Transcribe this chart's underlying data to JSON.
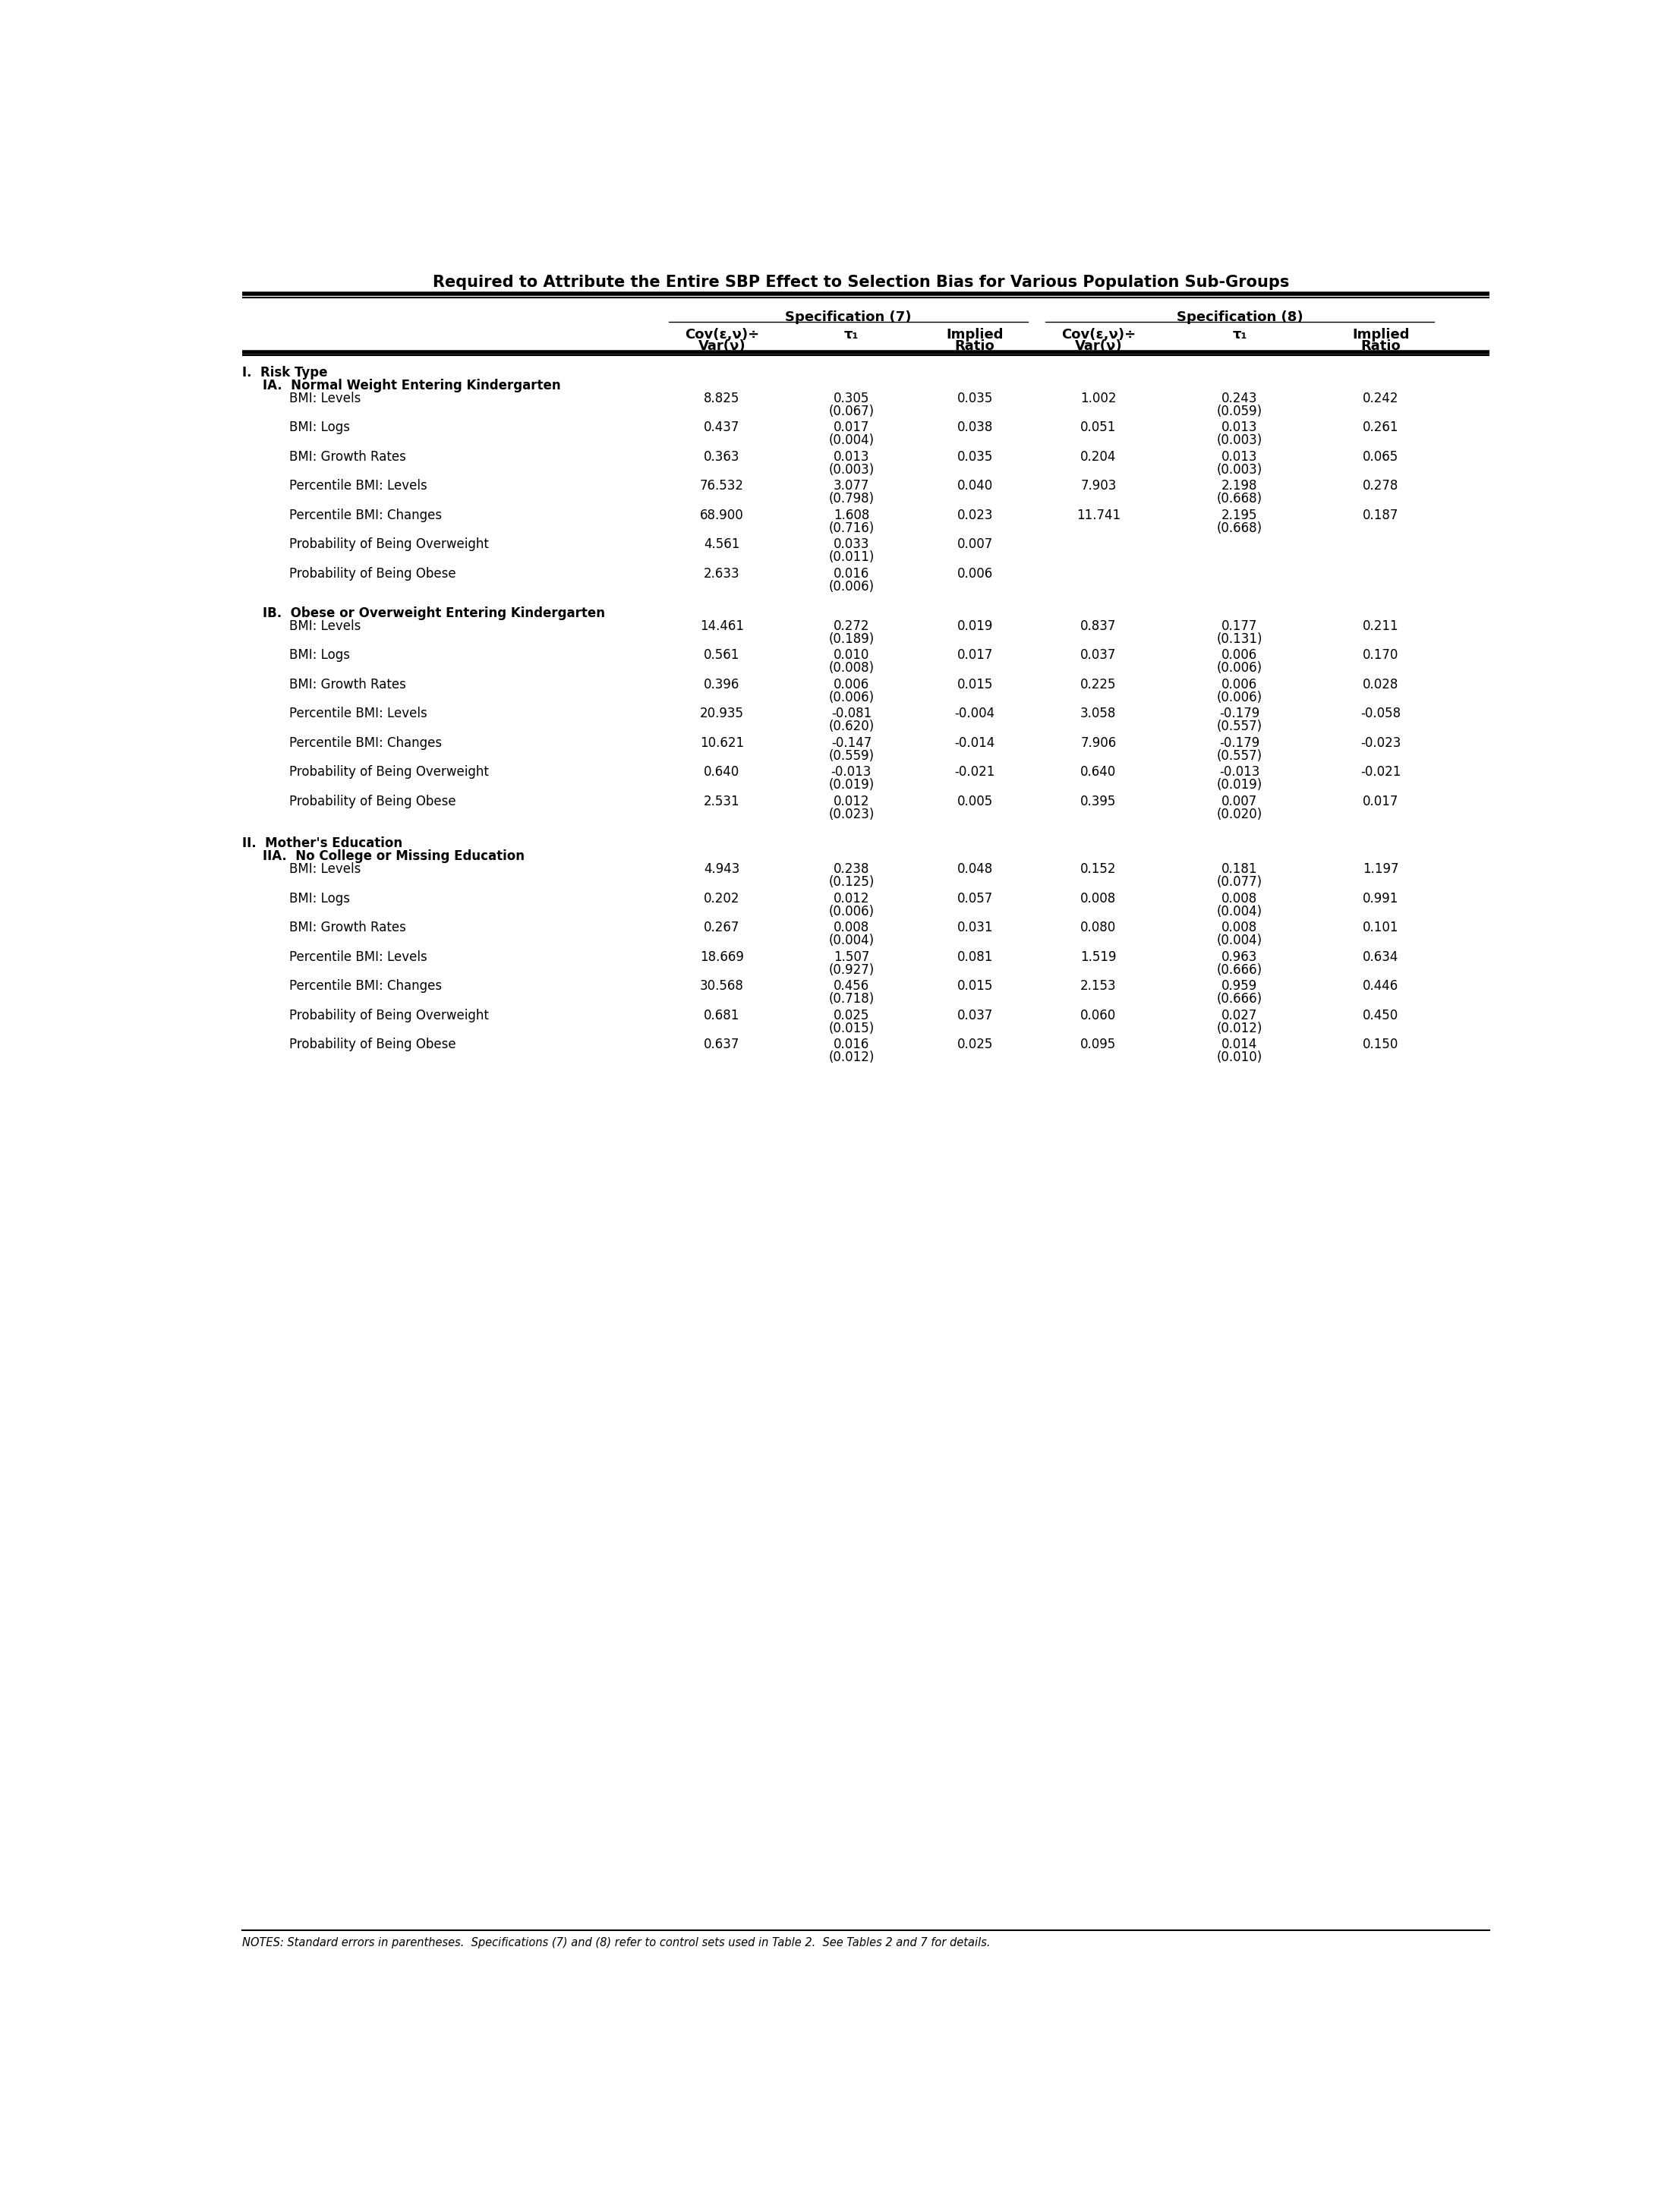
{
  "title_bold": "Required to Attribute the Entire SBP Effect to Selection Bias for Various Population Sub-Groups",
  "notes": "NOTES: Standard errors in parentheses.  Specifications (7) and (8) refer to control sets used in Table 2.  See Tables 2 and 7 for details.",
  "sections": [
    {
      "label": "I.  Risk Type",
      "subsections": [
        {
          "label": "IA.  Normal Weight Entering Kindergarten",
          "rows": [
            {
              "name": "BMI: Levels",
              "s7_cov": "8.825",
              "s7_tau": "0.305",
              "s7_se": "(0.067)",
              "s7_imp": "0.035",
              "s8_cov": "1.002",
              "s8_tau": "0.243",
              "s8_se": "(0.059)",
              "s8_imp": "0.242"
            },
            {
              "name": "BMI: Logs",
              "s7_cov": "0.437",
              "s7_tau": "0.017",
              "s7_se": "(0.004)",
              "s7_imp": "0.038",
              "s8_cov": "0.051",
              "s8_tau": "0.013",
              "s8_se": "(0.003)",
              "s8_imp": "0.261"
            },
            {
              "name": "BMI: Growth Rates",
              "s7_cov": "0.363",
              "s7_tau": "0.013",
              "s7_se": "(0.003)",
              "s7_imp": "0.035",
              "s8_cov": "0.204",
              "s8_tau": "0.013",
              "s8_se": "(0.003)",
              "s8_imp": "0.065"
            },
            {
              "name": "Percentile BMI: Levels",
              "s7_cov": "76.532",
              "s7_tau": "3.077",
              "s7_se": "(0.798)",
              "s7_imp": "0.040",
              "s8_cov": "7.903",
              "s8_tau": "2.198",
              "s8_se": "(0.668)",
              "s8_imp": "0.278"
            },
            {
              "name": "Percentile BMI: Changes",
              "s7_cov": "68.900",
              "s7_tau": "1.608",
              "s7_se": "(0.716)",
              "s7_imp": "0.023",
              "s8_cov": "11.741",
              "s8_tau": "2.195",
              "s8_se": "(0.668)",
              "s8_imp": "0.187"
            },
            {
              "name": "Probability of Being Overweight",
              "s7_cov": "4.561",
              "s7_tau": "0.033",
              "s7_se": "(0.011)",
              "s7_imp": "0.007",
              "s8_cov": "",
              "s8_tau": "",
              "s8_se": "",
              "s8_imp": ""
            },
            {
              "name": "Probability of Being Obese",
              "s7_cov": "2.633",
              "s7_tau": "0.016",
              "s7_se": "(0.006)",
              "s7_imp": "0.006",
              "s8_cov": "",
              "s8_tau": "",
              "s8_se": "",
              "s8_imp": ""
            }
          ]
        },
        {
          "label": "IB.  Obese or Overweight Entering Kindergarten",
          "rows": [
            {
              "name": "BMI: Levels",
              "s7_cov": "14.461",
              "s7_tau": "0.272",
              "s7_se": "(0.189)",
              "s7_imp": "0.019",
              "s8_cov": "0.837",
              "s8_tau": "0.177",
              "s8_se": "(0.131)",
              "s8_imp": "0.211"
            },
            {
              "name": "BMI: Logs",
              "s7_cov": "0.561",
              "s7_tau": "0.010",
              "s7_se": "(0.008)",
              "s7_imp": "0.017",
              "s8_cov": "0.037",
              "s8_tau": "0.006",
              "s8_se": "(0.006)",
              "s8_imp": "0.170"
            },
            {
              "name": "BMI: Growth Rates",
              "s7_cov": "0.396",
              "s7_tau": "0.006",
              "s7_se": "(0.006)",
              "s7_imp": "0.015",
              "s8_cov": "0.225",
              "s8_tau": "0.006",
              "s8_se": "(0.006)",
              "s8_imp": "0.028"
            },
            {
              "name": "Percentile BMI: Levels",
              "s7_cov": "20.935",
              "s7_tau": "-0.081",
              "s7_se": "(0.620)",
              "s7_imp": "-0.004",
              "s8_cov": "3.058",
              "s8_tau": "-0.179",
              "s8_se": "(0.557)",
              "s8_imp": "-0.058"
            },
            {
              "name": "Percentile BMI: Changes",
              "s7_cov": "10.621",
              "s7_tau": "-0.147",
              "s7_se": "(0.559)",
              "s7_imp": "-0.014",
              "s8_cov": "7.906",
              "s8_tau": "-0.179",
              "s8_se": "(0.557)",
              "s8_imp": "-0.023"
            },
            {
              "name": "Probability of Being Overweight",
              "s7_cov": "0.640",
              "s7_tau": "-0.013",
              "s7_se": "(0.019)",
              "s7_imp": "-0.021",
              "s8_cov": "0.640",
              "s8_tau": "-0.013",
              "s8_se": "(0.019)",
              "s8_imp": "-0.021"
            },
            {
              "name": "Probability of Being Obese",
              "s7_cov": "2.531",
              "s7_tau": "0.012",
              "s7_se": "(0.023)",
              "s7_imp": "0.005",
              "s8_cov": "0.395",
              "s8_tau": "0.007",
              "s8_se": "(0.020)",
              "s8_imp": "0.017"
            }
          ]
        }
      ]
    },
    {
      "label": "II.  Mother's Education",
      "subsections": [
        {
          "label": "IIA.  No College or Missing Education",
          "rows": [
            {
              "name": "BMI: Levels",
              "s7_cov": "4.943",
              "s7_tau": "0.238",
              "s7_se": "(0.125)",
              "s7_imp": "0.048",
              "s8_cov": "0.152",
              "s8_tau": "0.181",
              "s8_se": "(0.077)",
              "s8_imp": "1.197"
            },
            {
              "name": "BMI: Logs",
              "s7_cov": "0.202",
              "s7_tau": "0.012",
              "s7_se": "(0.006)",
              "s7_imp": "0.057",
              "s8_cov": "0.008",
              "s8_tau": "0.008",
              "s8_se": "(0.004)",
              "s8_imp": "0.991"
            },
            {
              "name": "BMI: Growth Rates",
              "s7_cov": "0.267",
              "s7_tau": "0.008",
              "s7_se": "(0.004)",
              "s7_imp": "0.031",
              "s8_cov": "0.080",
              "s8_tau": "0.008",
              "s8_se": "(0.004)",
              "s8_imp": "0.101"
            },
            {
              "name": "Percentile BMI: Levels",
              "s7_cov": "18.669",
              "s7_tau": "1.507",
              "s7_se": "(0.927)",
              "s7_imp": "0.081",
              "s8_cov": "1.519",
              "s8_tau": "0.963",
              "s8_se": "(0.666)",
              "s8_imp": "0.634"
            },
            {
              "name": "Percentile BMI: Changes",
              "s7_cov": "30.568",
              "s7_tau": "0.456",
              "s7_se": "(0.718)",
              "s7_imp": "0.015",
              "s8_cov": "2.153",
              "s8_tau": "0.959",
              "s8_se": "(0.666)",
              "s8_imp": "0.446"
            },
            {
              "name": "Probability of Being Overweight",
              "s7_cov": "0.681",
              "s7_tau": "0.025",
              "s7_se": "(0.015)",
              "s7_imp": "0.037",
              "s8_cov": "0.060",
              "s8_tau": "0.027",
              "s8_se": "(0.012)",
              "s8_imp": "0.450"
            },
            {
              "name": "Probability of Being Obese",
              "s7_cov": "0.637",
              "s7_tau": "0.016",
              "s7_se": "(0.012)",
              "s7_imp": "0.025",
              "s8_cov": "0.095",
              "s8_tau": "0.014",
              "s8_se": "(0.010)",
              "s8_imp": "0.150"
            }
          ]
        }
      ]
    }
  ]
}
